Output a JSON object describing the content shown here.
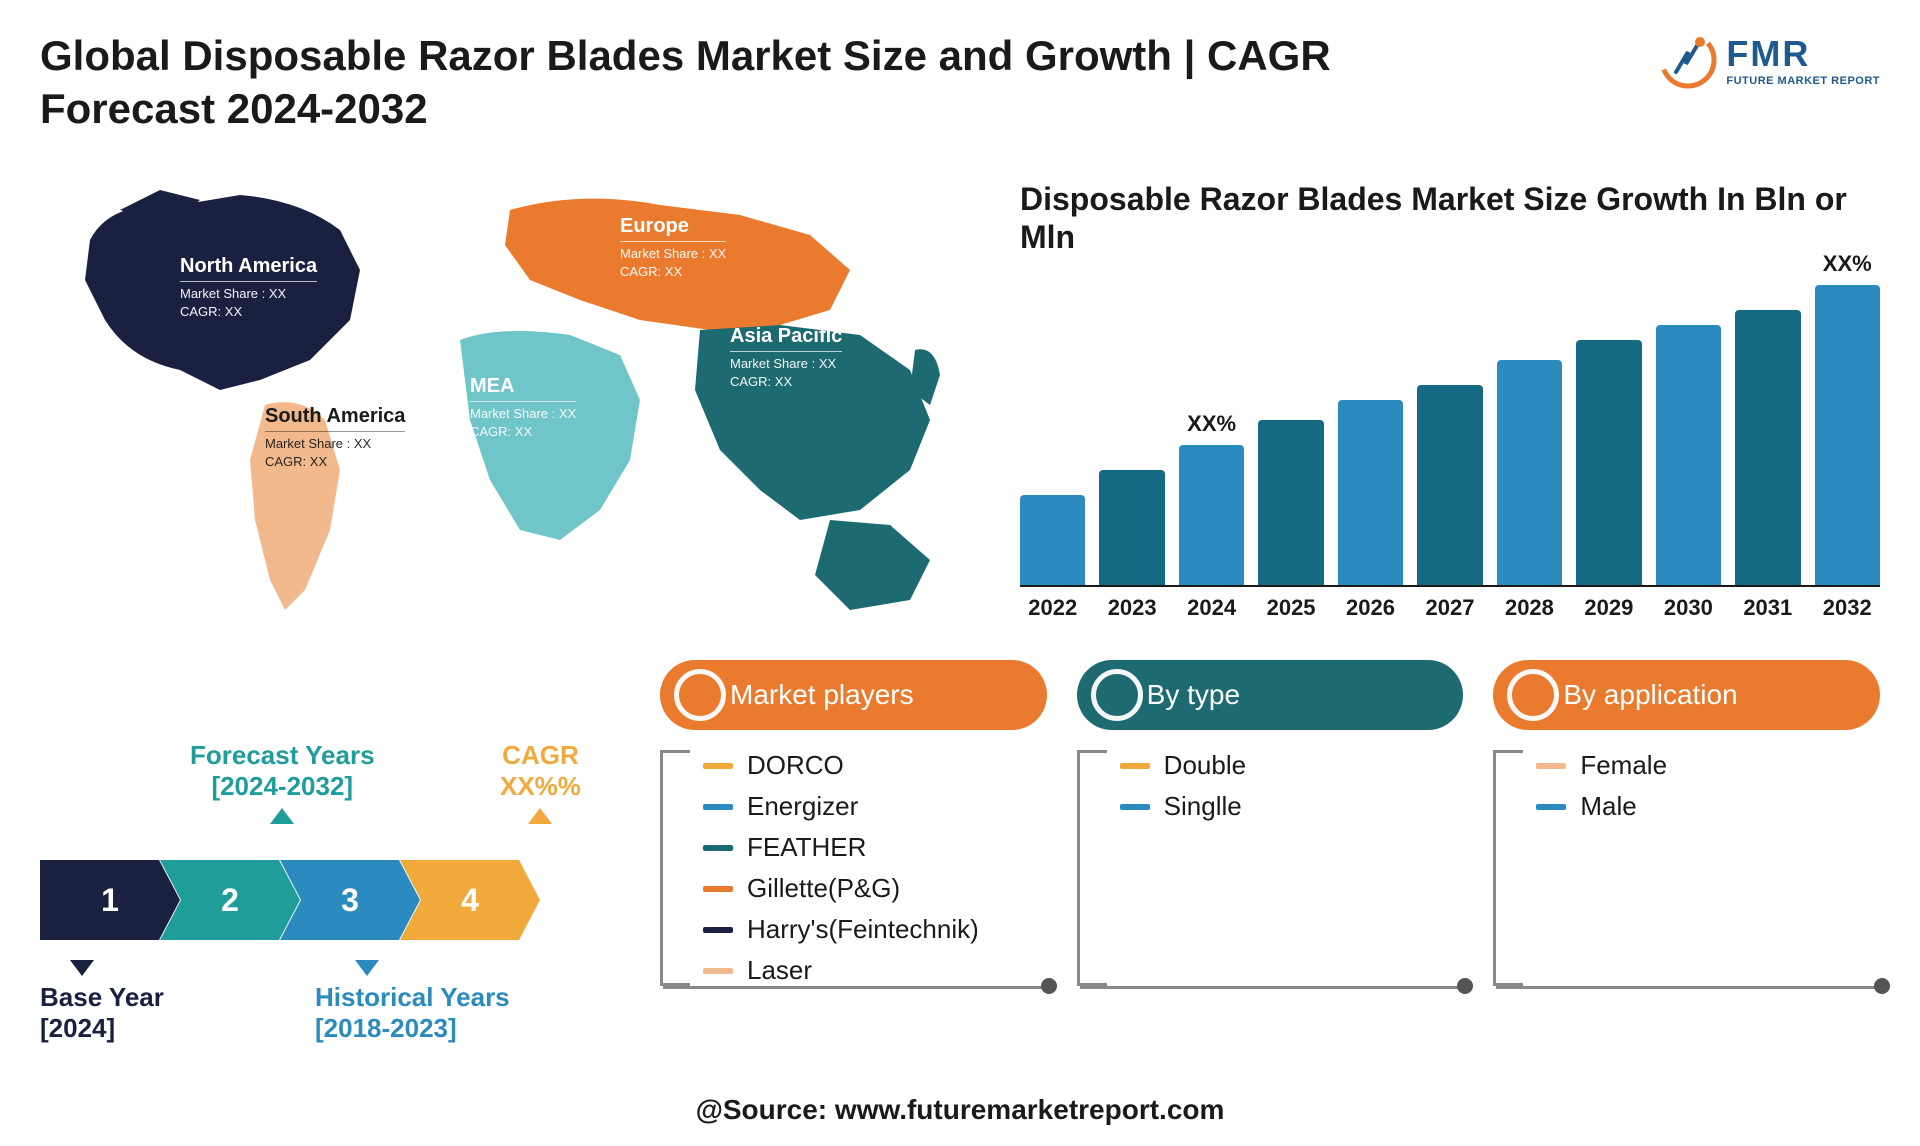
{
  "header": {
    "title": "Global Disposable Razor Blades  Market Size and Growth | CAGR Forecast  2024-2032",
    "logo_main": "FMR",
    "logo_sub": "FUTURE MARKET REPORT",
    "logo_accent": "#ea7a2e",
    "logo_blue": "#1e5a8e"
  },
  "map": {
    "regions": {
      "north_america": {
        "name": "North America",
        "share": "Market Share : XX",
        "cagr": "CAGR: XX",
        "fill": "#1a2140",
        "label_color": "#ffffff"
      },
      "south_america": {
        "name": "South America",
        "share": "Market Share : XX",
        "cagr": "CAGR: XX",
        "fill": "#f2b98c",
        "label_color": "#1a1a1a"
      },
      "europe": {
        "name": "Europe",
        "share": "Market Share : XX",
        "cagr": "CAGR: XX",
        "fill": "#ea7a2e",
        "label_color": "#ffffff"
      },
      "mea": {
        "name": "MEA",
        "share": "Market Share : XX",
        "cagr": "CAGR: XX",
        "fill": "#6fc5c8",
        "label_color": "#ffffff"
      },
      "asia_pacific": {
        "name": "Asia Pacific",
        "share": "Market Share : XX",
        "cagr": "CAGR: XX",
        "fill": "#1d6a70",
        "label_color": "#ffffff"
      }
    }
  },
  "chart": {
    "title": "Disposable Razor Blades Market Size Growth In Bln or Mln",
    "type": "bar",
    "years": [
      "2022",
      "2023",
      "2024",
      "2025",
      "2026",
      "2027",
      "2028",
      "2029",
      "2030",
      "2031",
      "2032"
    ],
    "values": [
      90,
      115,
      140,
      165,
      185,
      200,
      225,
      245,
      260,
      275,
      300
    ],
    "ymax": 310,
    "bar_color_a": "#2b8bbf",
    "bar_color_b": "#176a84",
    "background_color": "#ffffff",
    "annotations": [
      {
        "index": 2,
        "text": "XX%"
      },
      {
        "index": 10,
        "text": "XX%"
      }
    ],
    "label_fontsize": 22,
    "title_fontsize": 32,
    "bar_gap": 14
  },
  "timeline": {
    "segments": [
      {
        "num": "1",
        "color": "#1a2140"
      },
      {
        "num": "2",
        "color": "#1f9d9b"
      },
      {
        "num": "3",
        "color": "#2b8bbf"
      },
      {
        "num": "4",
        "color": "#f2a93b"
      }
    ],
    "annotations": {
      "base_year": {
        "title": "Base Year",
        "sub": "[2024]",
        "color": "#1a2140"
      },
      "forecast_years": {
        "title": "Forecast Years",
        "sub": "[2024-2032]",
        "color": "#1f9d9b"
      },
      "historical_years": {
        "title": "Historical Years",
        "sub": "[2018-2023]",
        "color": "#2b8bbf"
      },
      "cagr": {
        "title": "CAGR",
        "sub": "XX%%",
        "color": "#f2a93b"
      }
    }
  },
  "pills": {
    "market_players": {
      "label": "Market players",
      "pill_color": "#ea7a2e",
      "items": [
        {
          "label": "DORCO",
          "swatch": "#f2a93b"
        },
        {
          "label": "Energizer",
          "swatch": "#2b8bbf"
        },
        {
          "label": "FEATHER",
          "swatch": "#1d6a70"
        },
        {
          "label": "Gillette(P&G)",
          "swatch": "#ea7a2e"
        },
        {
          "label": "Harry's(Feintechnik)",
          "swatch": "#1a2140"
        },
        {
          "label": "Laser",
          "swatch": "#f2b98c"
        }
      ]
    },
    "by_type": {
      "label": "By type",
      "pill_color": "#1d6a70",
      "items": [
        {
          "label": "Double",
          "swatch": "#f2a93b"
        },
        {
          "label": "Singlle",
          "swatch": "#2b8bbf"
        }
      ]
    },
    "by_application": {
      "label": "By application",
      "pill_color": "#ea7a2e",
      "items": [
        {
          "label": "Female",
          "swatch": "#f2b98c"
        },
        {
          "label": "Male",
          "swatch": "#2b8bbf"
        }
      ]
    }
  },
  "footer": {
    "source": "@Source: www.futuremarketreport.com"
  }
}
